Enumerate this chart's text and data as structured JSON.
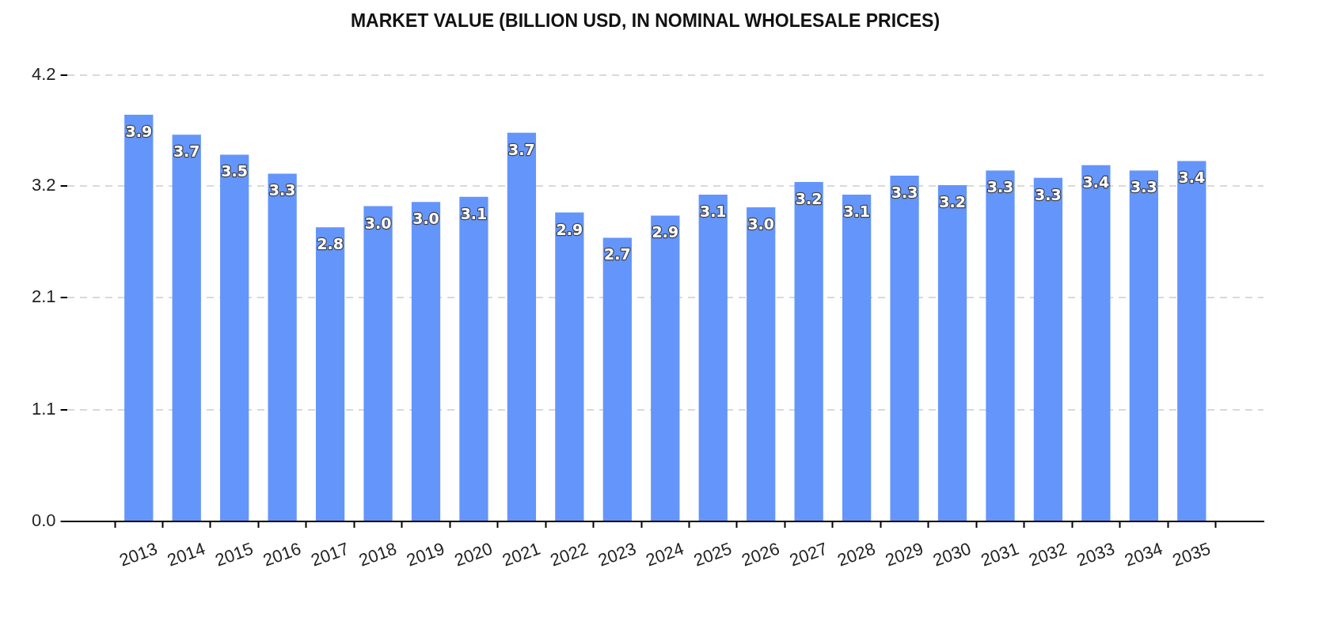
{
  "chart_data": {
    "type": "bar",
    "title": "MARKET VALUE (BILLION USD, IN NOMINAL WHOLESALE PRICES)",
    "categories": [
      "2013",
      "2014",
      "2015",
      "2016",
      "2017",
      "2018",
      "2019",
      "2020",
      "2021",
      "2022",
      "2023",
      "2024",
      "2025",
      "2026",
      "2027",
      "2028",
      "2029",
      "2030",
      "2031",
      "2032",
      "2033",
      "2034",
      "2035"
    ],
    "values": [
      3.87,
      3.68,
      3.49,
      3.31,
      2.8,
      3.0,
      3.04,
      3.09,
      3.7,
      2.94,
      2.7,
      2.91,
      3.11,
      2.99,
      3.23,
      3.11,
      3.29,
      3.2,
      3.34,
      3.27,
      3.39,
      3.34,
      3.43
    ],
    "value_labels": [
      "3.9",
      "3.7",
      "3.5",
      "3.3",
      "2.8",
      "3.0",
      "3.0",
      "3.1",
      "3.7",
      "2.9",
      "2.7",
      "2.9",
      "3.1",
      "3.0",
      "3.2",
      "3.1",
      "3.3",
      "3.2",
      "3.3",
      "3.3",
      "3.4",
      "3.3",
      "3.4"
    ],
    "color": "#6495fa",
    "ylim": [
      0,
      4.25
    ],
    "yticks": [
      {
        "value": 0,
        "label": "0.0"
      },
      {
        "value": 1.06,
        "label": "1.1"
      },
      {
        "value": 2.13,
        "label": "2.1"
      },
      {
        "value": 3.19,
        "label": "3.2"
      },
      {
        "value": 4.25,
        "label": "4.2"
      }
    ],
    "grid": "y"
  }
}
